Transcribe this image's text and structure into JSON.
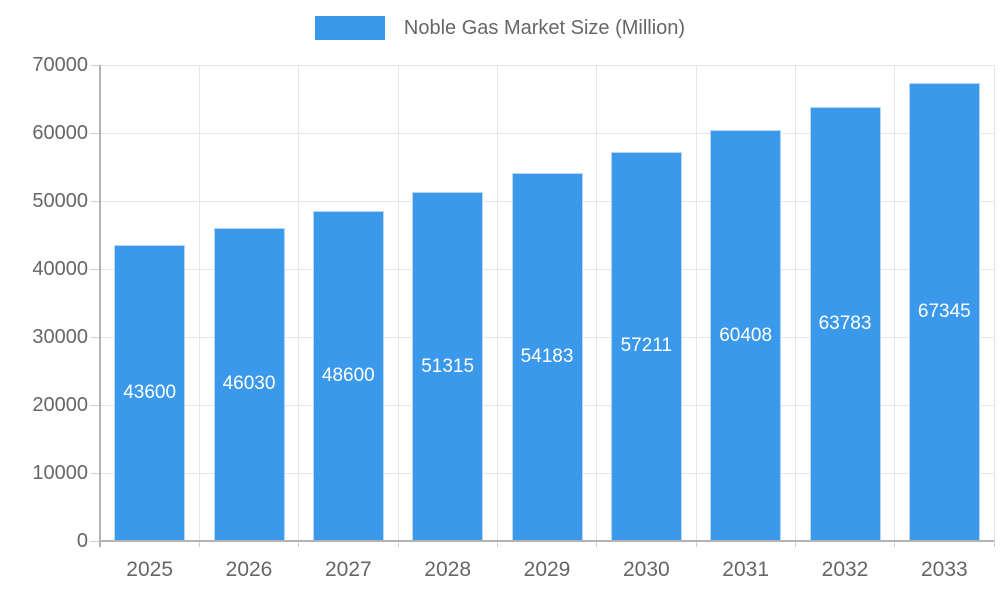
{
  "legend": {
    "label": "Noble Gas Market Size (Million)"
  },
  "chart_data": {
    "type": "bar",
    "title": "Noble Gas Market Size (Million)",
    "categories": [
      "2025",
      "2026",
      "2027",
      "2028",
      "2029",
      "2030",
      "2031",
      "2032",
      "2033"
    ],
    "values": [
      43600,
      46030,
      48600,
      51315,
      54183,
      57211,
      60408,
      63783,
      67345
    ],
    "xlabel": "",
    "ylabel": "",
    "ylim": [
      0,
      70000
    ],
    "yticks": [
      0,
      10000,
      20000,
      30000,
      40000,
      50000,
      60000,
      70000
    ],
    "grid": true,
    "legend_position": "top",
    "value_labels": "inside-center",
    "colors": {
      "bar_fill": "#3b99ec",
      "bar_border": "#b7d7f4",
      "value_label_text": "#ffffff",
      "axis_text": "#666666",
      "gridline": "#e6e6e6",
      "axis_line": "#b3b3b3",
      "tick_mark": "#cfcfcf",
      "background": "#ffffff"
    }
  }
}
